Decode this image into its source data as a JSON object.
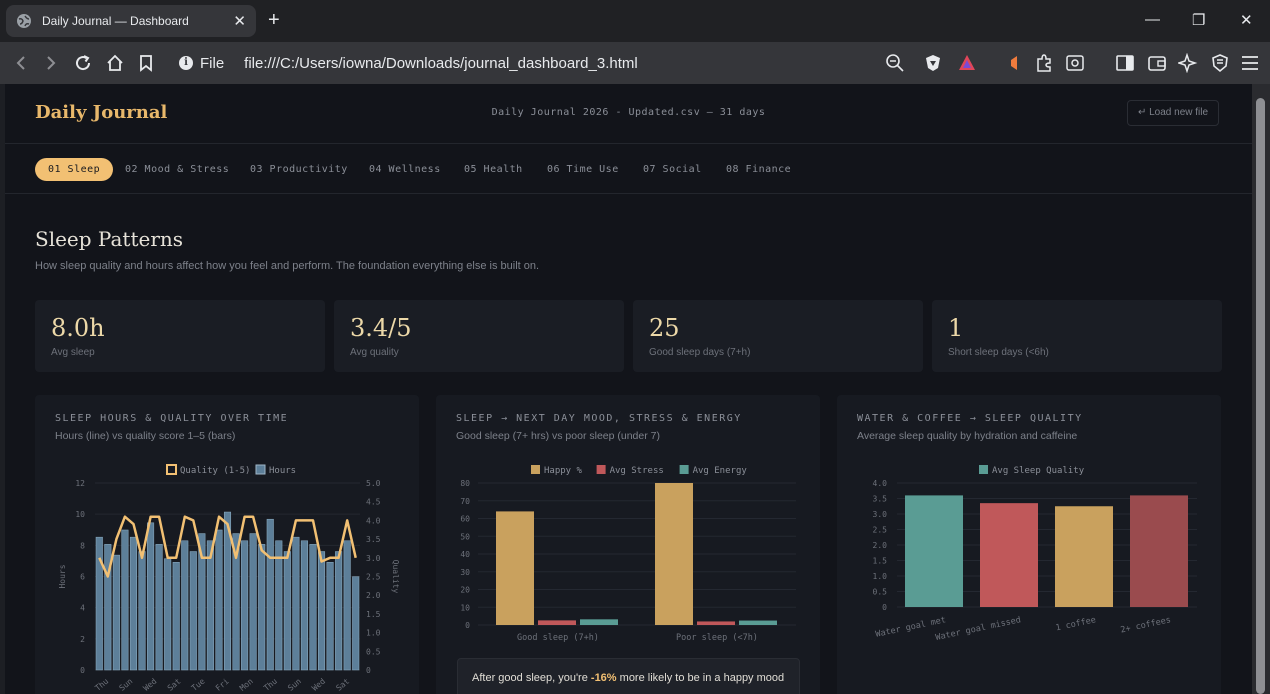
{
  "browser": {
    "tab_title": "Daily Journal — Dashboard",
    "new_tab": "+",
    "url_label": "File",
    "url": "file:///C:/Users/iowna/Downloads/journal_dashboard_3.html"
  },
  "header": {
    "brand": "Daily Journal",
    "file_info": "Daily Journal 2026 - Updated.csv — 31 days",
    "load_button": "↵ Load new file"
  },
  "nav_tabs": [
    {
      "label": "01 Sleep",
      "active": true
    },
    {
      "label": "02 Mood & Stress",
      "active": false
    },
    {
      "label": "03 Productivity",
      "active": false
    },
    {
      "label": "04 Wellness",
      "active": false
    },
    {
      "label": "05 Health",
      "active": false
    },
    {
      "label": "06 Time Use",
      "active": false
    },
    {
      "label": "07 Social",
      "active": false
    },
    {
      "label": "08 Finance",
      "active": false
    }
  ],
  "section": {
    "title": "Sleep Patterns",
    "subtitle": "How sleep quality and hours affect how you feel and perform. The foundation everything else is built on."
  },
  "stats": [
    {
      "value": "8.0h",
      "label": "Avg sleep"
    },
    {
      "value": "3.4/5",
      "label": "Avg quality"
    },
    {
      "value": "25",
      "label": "Good sleep days (7+h)"
    },
    {
      "value": "1",
      "label": "Short sleep days (<6h)"
    }
  ],
  "colors": {
    "accent": "#f2c073",
    "gold": "#c9a15e",
    "red": "#c0585a",
    "teal": "#5a9c94",
    "bar_blue": "#5d7f99"
  },
  "chart_data": [
    {
      "type": "bar",
      "title": "SLEEP HOURS & QUALITY OVER TIME",
      "subtitle": "Hours (line) vs quality score 1–5 (bars)",
      "legend": [
        "Quality (1-5)",
        "Hours"
      ],
      "xlabel": "",
      "ylabel_left": "Hours",
      "ylabel_right": "Quality",
      "left_ticks": [
        "12",
        "10",
        "8",
        "6",
        "4",
        "2",
        "0"
      ],
      "right_ticks": [
        "5.0",
        "4.5",
        "4.0",
        "3.5",
        "3.0",
        "2.5",
        "2.0",
        "1.5",
        "1.0",
        "0.5",
        "0"
      ],
      "left_ylim": [
        0,
        12
      ],
      "right_ylim": [
        0,
        5
      ],
      "x_tick_labels": [
        "Thu",
        "Sun",
        "Wed",
        "Sat",
        "Tue",
        "Fri",
        "Mon",
        "Thu",
        "Sun",
        "Wed",
        "Sat"
      ],
      "series": [
        {
          "name": "Quality (1-5)",
          "values": [
            3.7,
            3.5,
            3.2,
            3.9,
            3.7,
            3.3,
            4.1,
            3.5,
            3.1,
            3.0,
            3.6,
            3.3,
            3.8,
            3.6,
            3.9,
            4.4,
            3.8,
            3.6,
            3.8,
            3.5,
            4.2,
            3.6,
            3.3,
            3.7,
            3.6,
            3.5,
            3.3,
            3.0,
            3.3,
            3.6,
            2.6
          ]
        },
        {
          "name": "Hours",
          "values": [
            3.0,
            2.5,
            3.5,
            4.1,
            3.9,
            3.0,
            4.1,
            4.1,
            3.0,
            3.0,
            4.1,
            4.0,
            3.0,
            3.0,
            4.1,
            3.9,
            3.0,
            4.1,
            4.1,
            3.2,
            3.0,
            3.0,
            3.0,
            4.0,
            4.0,
            4.0,
            2.9,
            3.0,
            3.0,
            4.0,
            3.0
          ]
        }
      ]
    },
    {
      "type": "bar",
      "title": "SLEEP → NEXT DAY MOOD, STRESS & ENERGY",
      "subtitle": "Good sleep (7+ hrs) vs poor sleep (under 7)",
      "categories": [
        "Good sleep (7+h)",
        "Poor sleep (<7h)"
      ],
      "ylim": [
        0,
        80
      ],
      "y_ticks": [
        "80",
        "70",
        "60",
        "50",
        "40",
        "30",
        "20",
        "10",
        "0"
      ],
      "series": [
        {
          "name": "Happy %",
          "values": [
            64,
            80
          ]
        },
        {
          "name": "Avg Stress",
          "values": [
            2.6,
            2.0
          ]
        },
        {
          "name": "Avg Energy",
          "values": [
            3.2,
            2.5
          ]
        }
      ]
    },
    {
      "type": "bar",
      "title": "WATER & COFFEE → SLEEP QUALITY",
      "subtitle": "Average sleep quality by hydration and caffeine",
      "categories": [
        "Water goal met",
        "Water goal missed",
        "1 coffee",
        "2+ coffees"
      ],
      "ylim": [
        0,
        4.0
      ],
      "y_ticks": [
        "4.0",
        "3.5",
        "3.0",
        "2.5",
        "2.0",
        "1.5",
        "1.0",
        "0.5",
        "0"
      ],
      "series": [
        {
          "name": "Avg Sleep Quality",
          "values": [
            3.6,
            3.35,
            3.25,
            3.6
          ]
        }
      ]
    }
  ],
  "insight": {
    "prefix": "After good sleep, you're ",
    "pct": "-16%",
    "suffix": " more likely to be in a happy mood"
  }
}
